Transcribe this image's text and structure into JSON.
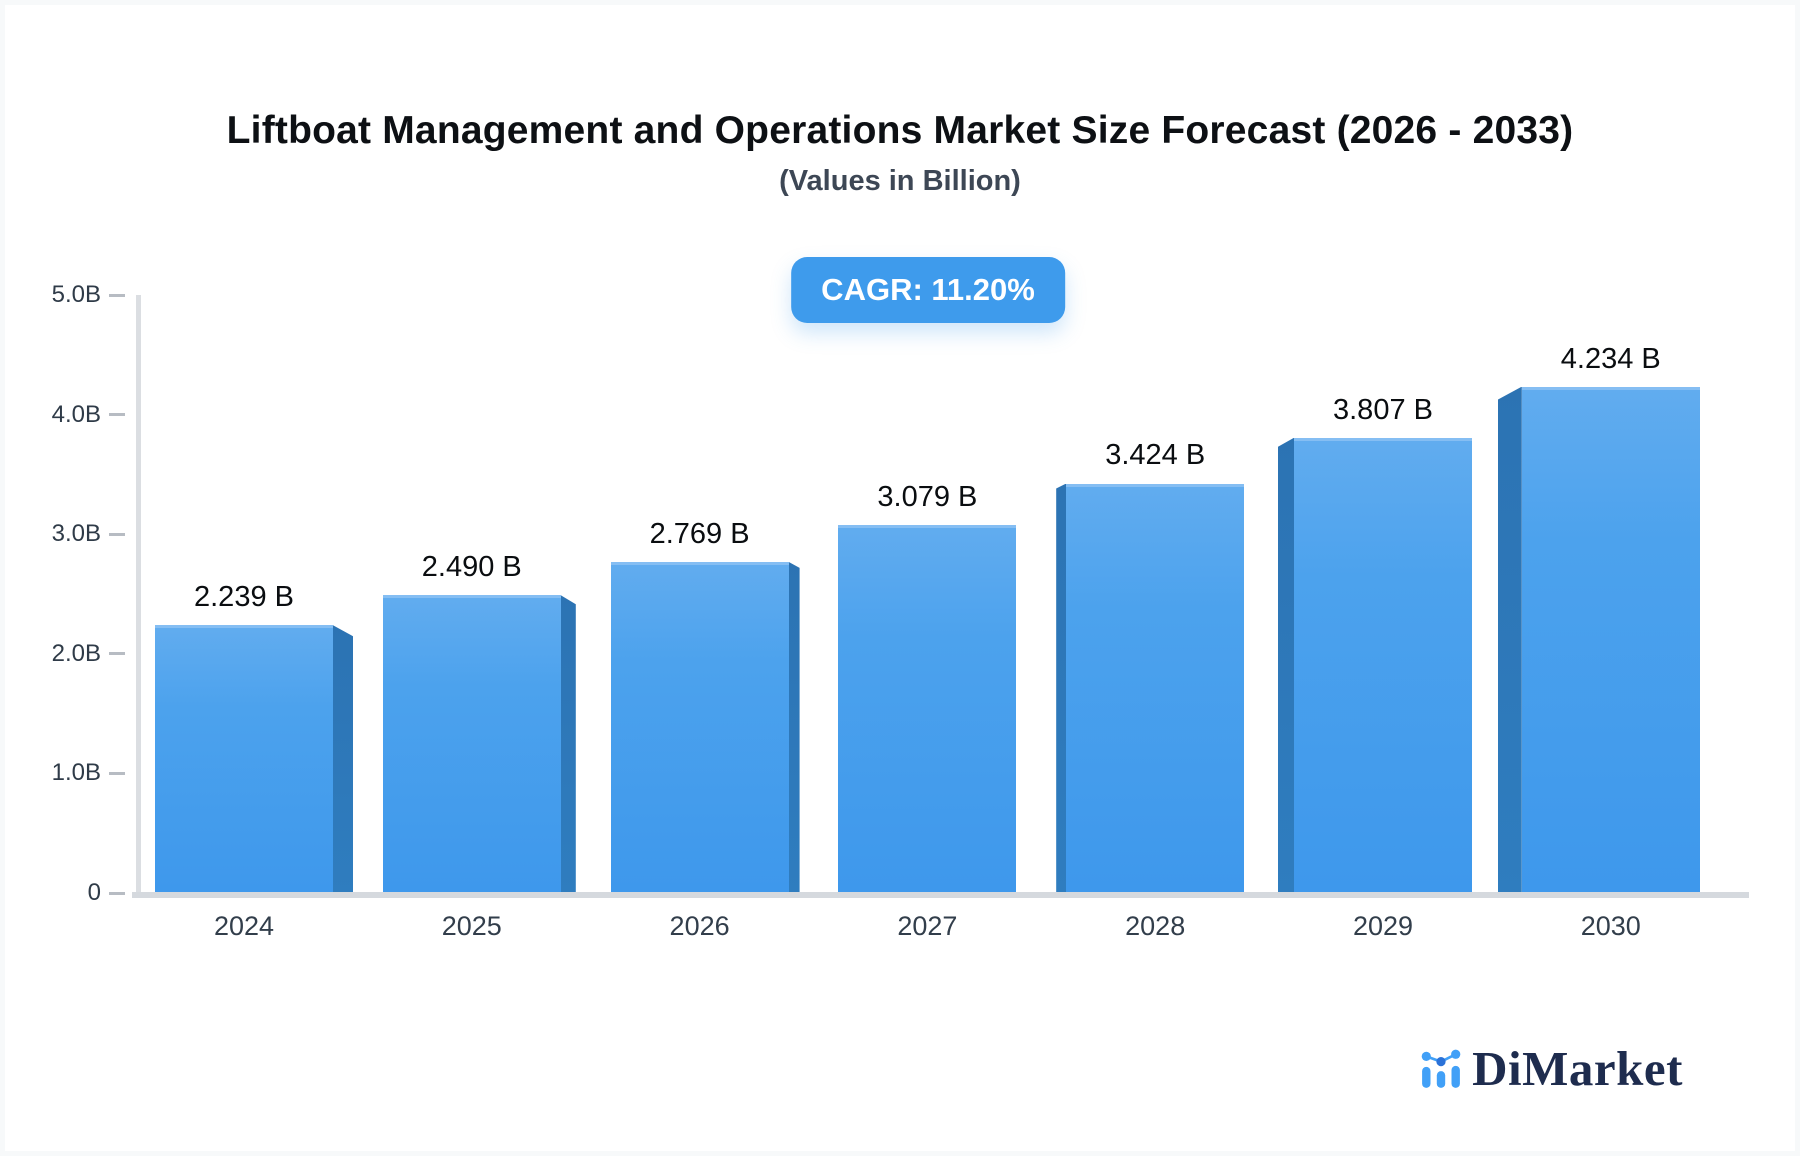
{
  "chart_data": {
    "type": "bar",
    "title": "Liftboat Management and Operations Market Size Forecast (2026 - 2033)",
    "subtitle": "(Values in Billion)",
    "cagr_label": "CAGR: 11.20%",
    "categories": [
      "2024",
      "2025",
      "2026",
      "2027",
      "2028",
      "2029",
      "2030"
    ],
    "values": [
      2.239,
      2.49,
      2.769,
      3.079,
      3.424,
      3.807,
      4.234
    ],
    "value_labels": [
      "2.239 B",
      "2.490 B",
      "2.769 B",
      "3.079 B",
      "3.424 B",
      "3.807 B",
      "4.234 B"
    ],
    "unit": "Billion",
    "ylim": [
      0,
      5
    ],
    "y_tick_values": [
      0,
      1,
      2,
      3,
      4,
      5
    ],
    "y_tick_labels": [
      "0",
      "1.0B",
      "2.0B",
      "3.0B",
      "4.0B",
      "5.0B"
    ],
    "grid": "off",
    "legend": "none",
    "colors": {
      "bar": "#459fed",
      "bar_highlight": "#85bef3",
      "bar_side": "#2d76b6",
      "badge_background": "#3e9bec",
      "badge_text": "#ffffff",
      "axis": "#d5d9de",
      "tick": "#b7bcc3",
      "title_text": "#0d1014",
      "subtitle_text": "#3d4755",
      "logo_blue": "#41a0f7",
      "logo_dot_dark": "#2b72d8",
      "logo_navy": "#1e2c4e"
    }
  },
  "branding": {
    "logo_text": "DiMarket"
  }
}
